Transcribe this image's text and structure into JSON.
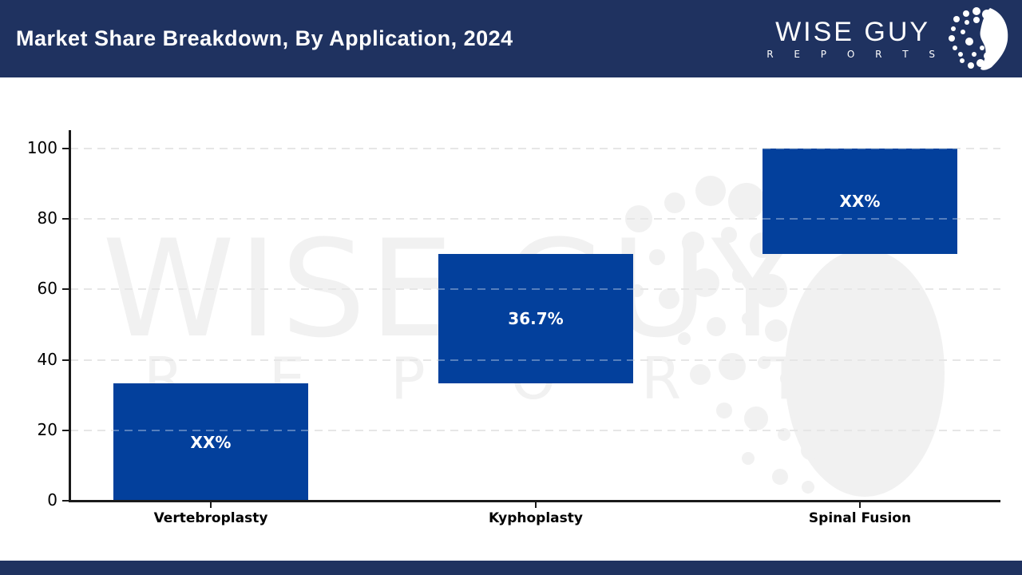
{
  "header": {
    "title": "Market Share Breakdown, By Application, 2024",
    "brand_line1": "WISE GUY",
    "brand_line2": "R E P O R T S",
    "bg_color": "#1f3260"
  },
  "watermark": {
    "line1": "WISE GUY",
    "line2": "R E P O R T S"
  },
  "chart_data": {
    "type": "bar",
    "subtype": "floating-waterfall",
    "title": "Market Share Breakdown, By Application, 2024",
    "categories": [
      "Vertebroplasty",
      "Kyphoplasty",
      "Spinal Fusion"
    ],
    "segments": [
      {
        "category": "Vertebroplasty",
        "start": 0,
        "end": 33.3,
        "label": "XX%"
      },
      {
        "category": "Kyphoplasty",
        "start": 33.3,
        "end": 70,
        "label": "36.7%"
      },
      {
        "category": "Spinal Fusion",
        "start": 70,
        "end": 100,
        "label": "XX%"
      }
    ],
    "ylim": [
      0,
      100
    ],
    "yticks": [
      0,
      20,
      40,
      60,
      80,
      100
    ],
    "grid": "dashed-horizontal",
    "legend": null,
    "bar_color": "#03409c",
    "grid_color": "#d9d9d9",
    "axis_color": "#1a1a1a"
  },
  "footer": {
    "bg_color": "#1f3260"
  }
}
